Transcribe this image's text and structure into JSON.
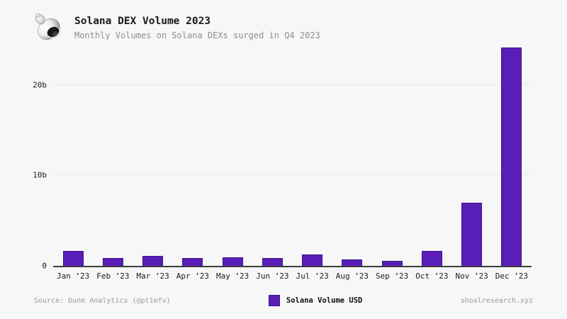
{
  "header": {
    "title": "Solana DEX Volume 2023",
    "subtitle": "Monthly Volumes on Solana DEXs surged in Q4 2023",
    "logo_icon": "shell-icon"
  },
  "chart_data": {
    "type": "bar",
    "title": "Solana DEX Volume 2023",
    "subtitle": "Monthly Volumes on Solana DEXs surged in Q4 2023",
    "categories": [
      "Jan ’23",
      "Feb ’23",
      "Mar ’23",
      "Apr ’23",
      "May ’23",
      "Jun ’23",
      "Jul ’23",
      "Aug ’23",
      "Sep ’23",
      "Oct ’23",
      "Nov ’23",
      "Dec ’23"
    ],
    "values": [
      1.6,
      0.8,
      1.05,
      0.78,
      0.9,
      0.82,
      1.2,
      0.65,
      0.5,
      1.55,
      6.9,
      24.0
    ],
    "unit": "billions USD",
    "series_name": "Solana Volume USD",
    "yticks": [
      {
        "label": "0",
        "value": 0
      },
      {
        "label": "10b",
        "value": 10
      },
      {
        "label": "20b",
        "value": 20
      }
    ],
    "ylim": [
      0,
      24.5
    ],
    "grid": "horizontal",
    "legend_position": "bottom-center",
    "bar_color": "#5a1eb8",
    "bar_border_color": "#40108a",
    "axis_color": "#3d3d3d",
    "gridline_color": "#e7e7e7"
  },
  "footer": {
    "source": "Source: Dune Analytics (@pt1mfv)",
    "site": "shoalresearch.xyz"
  }
}
